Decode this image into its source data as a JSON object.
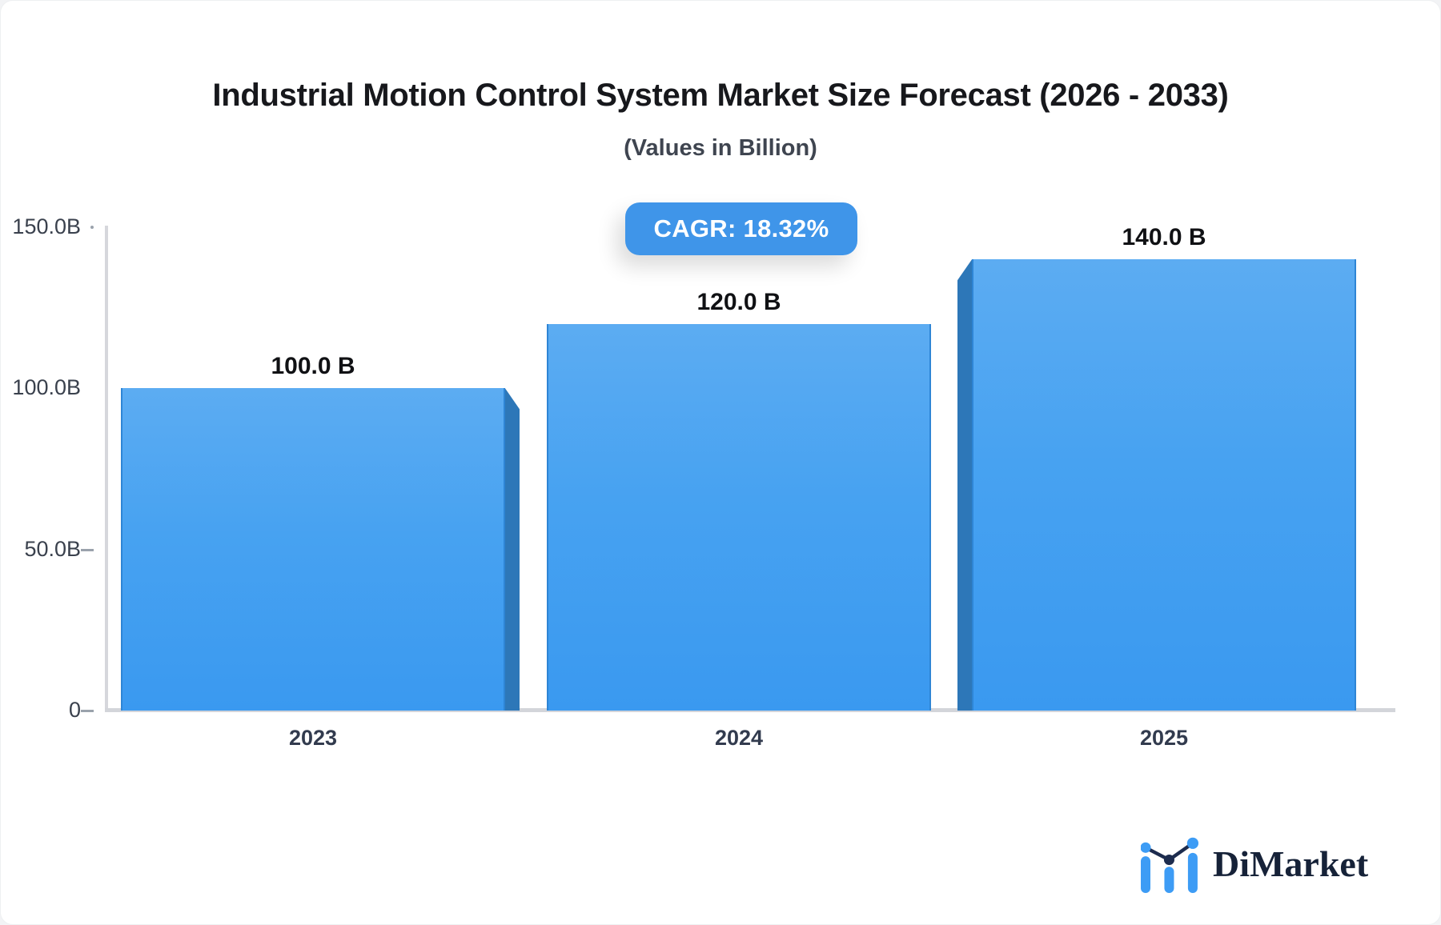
{
  "header": {
    "title": "Industrial Motion Control System Market Size Forecast (2026 - 2033)",
    "subtitle": "(Values in Billion)"
  },
  "badge": {
    "label": "CAGR: 18.32%"
  },
  "brand": {
    "name": "DiMarket",
    "icon": "mini-bar-chart-logo-icon"
  },
  "colors": {
    "badge_blue": "#3f95e9",
    "bar_top": "#5cacf2",
    "bar_bottom": "#3a99f0",
    "bar_bevel": "#2d77b8",
    "axis_gray": "#d5d6db",
    "logo_navy": "#162238",
    "logo_blue": "#3d9cf5"
  },
  "chart_data": {
    "type": "bar",
    "title": "Industrial Motion Control System Market Size Forecast (2026 - 2033)",
    "subtitle": "(Values in Billion)",
    "categories": [
      "2023",
      "2024",
      "2025"
    ],
    "values": [
      100.0,
      120.0,
      140.0
    ],
    "unit": "Billion",
    "bar_labels": [
      "100.0 B",
      "120.0 B",
      "140.0 B"
    ],
    "yticks": [
      {
        "label": "150.0B",
        "value": 150,
        "tick": "dot"
      },
      {
        "label": "100.0B",
        "value": 100,
        "tick": "none"
      },
      {
        "label": "50.0B",
        "value": 50,
        "tick": "dash"
      },
      {
        "label": "0",
        "value": 0,
        "tick": "dash"
      }
    ],
    "ylim": [
      0,
      150
    ],
    "xlabel": "",
    "ylabel": "",
    "grid": false,
    "legend": false
  }
}
